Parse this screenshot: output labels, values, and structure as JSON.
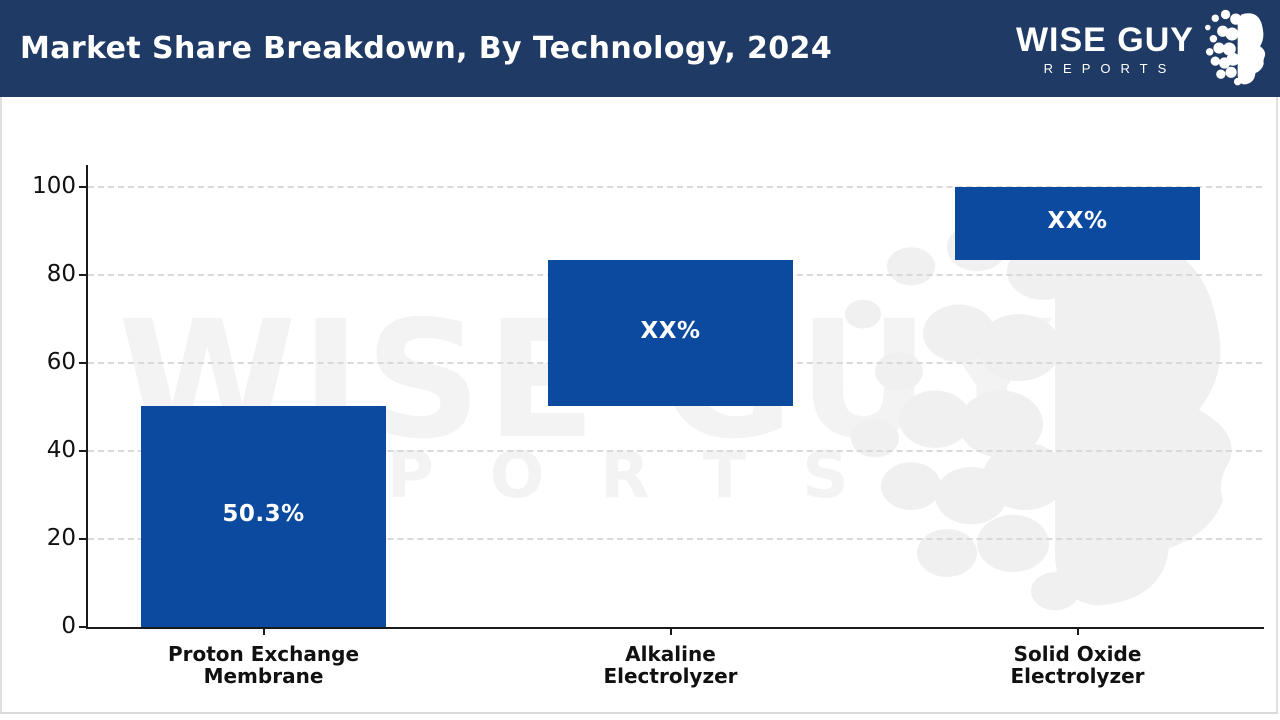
{
  "header": {
    "title": "Market Share Breakdown, By Technology, 2024",
    "bg_color": "#1f3a64",
    "logo": {
      "line1": "WISE GUY",
      "line2": "REPORTS"
    }
  },
  "watermark": {
    "line1": "WISE GUY",
    "line2": "REPORTS"
  },
  "chart_data": {
    "type": "bar",
    "subtype": "floating-segment-column",
    "title": "Market Share Breakdown, By Technology, 2024",
    "xlabel": "",
    "ylabel": "",
    "categories": [
      "Proton Exchange\nMembrane",
      "Alkaline\nElectrolyzer",
      "Solid Oxide\nElectrolyzer"
    ],
    "bars": [
      {
        "start": 0,
        "end": 50.3,
        "label": "50.3%"
      },
      {
        "start": 50.3,
        "end": 83.5,
        "label": "XX%"
      },
      {
        "start": 83.5,
        "end": 100,
        "label": "XX%"
      }
    ],
    "yticks": [
      0,
      20,
      40,
      60,
      80,
      100
    ],
    "ylim": [
      0,
      105
    ],
    "grid": "horizontal-dashed",
    "legend": "none",
    "bar_color": "#0b4a9e",
    "grid_color": "#d9d9d9",
    "axis_color": "#1a1a1a"
  }
}
